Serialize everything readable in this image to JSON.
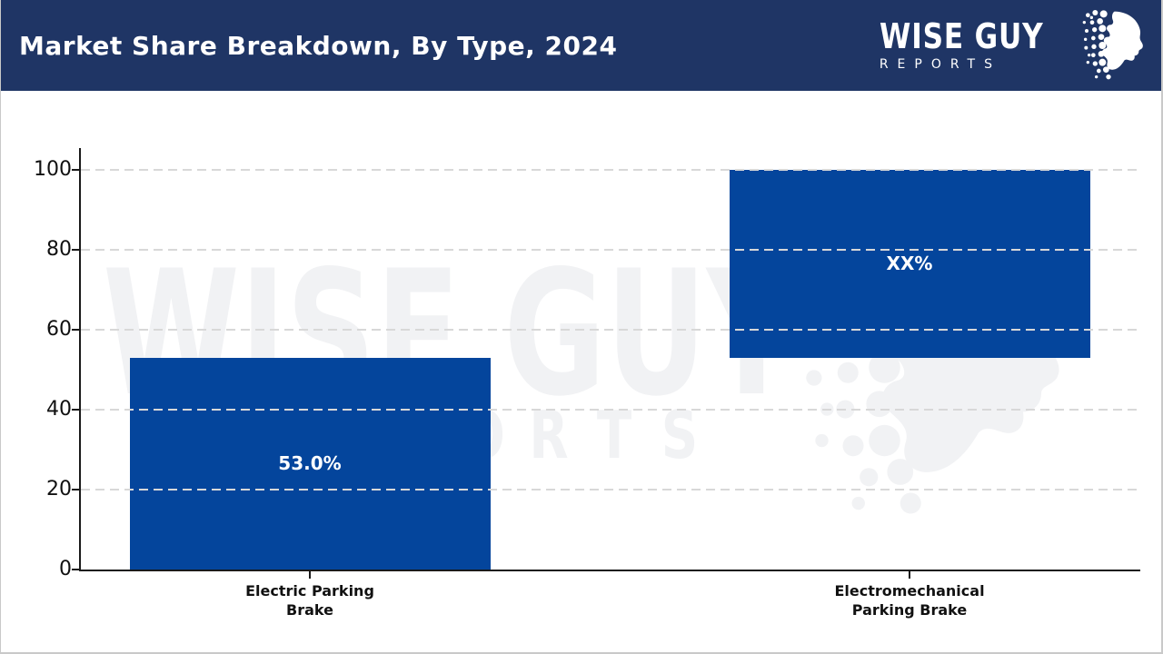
{
  "header": {
    "title": "Market Share Breakdown, By Type, 2024",
    "logo": {
      "name": "WISE GUY",
      "tagline": "REPORTS"
    }
  },
  "watermark": {
    "big_text": "WISE GUY",
    "spaced_text": "REPORTS"
  },
  "chart_data": {
    "type": "bar",
    "subtype": "floating-stacked-segments",
    "title": "Market Share Breakdown, By Type, 2024",
    "categories": [
      "Electric Parking\nBrake",
      "Electromechanical\nParking Brake"
    ],
    "bars": [
      {
        "category": "Electric Parking Brake",
        "base": 0,
        "top": 53.0,
        "label": "53.0%"
      },
      {
        "category": "Electromechanical Parking Brake",
        "base": 53.0,
        "top": 100.0,
        "label": "XX%"
      }
    ],
    "yticks": [
      0,
      20,
      40,
      60,
      80,
      100
    ],
    "ylim": [
      0,
      105.5
    ],
    "xlabel": "",
    "ylabel": "",
    "grid": {
      "axis": "y",
      "style": "dashed",
      "color": "#d8d8d8"
    },
    "bar_color": "#04459c",
    "value_label_color": "#ffffff",
    "legend": "none"
  }
}
